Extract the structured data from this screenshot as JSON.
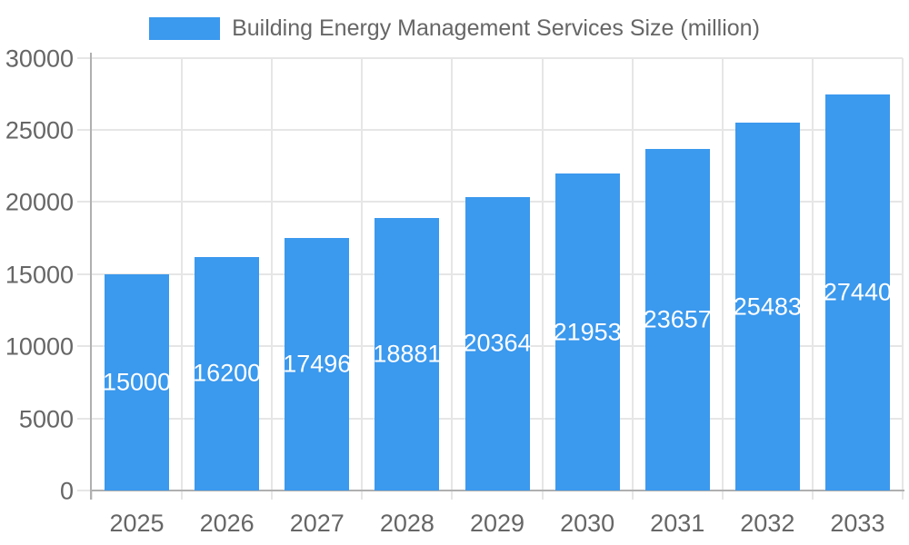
{
  "chart_data": {
    "type": "bar",
    "title": "Building Energy Management Services Size (million)",
    "categories": [
      "2025",
      "2026",
      "2027",
      "2028",
      "2029",
      "2030",
      "2031",
      "2032",
      "2033"
    ],
    "values": [
      15000,
      16200,
      17496,
      18881,
      20364,
      21953,
      23657,
      25483,
      27440
    ],
    "xlabel": "",
    "ylabel": "",
    "ylim": [
      0,
      30000
    ],
    "yticks": [
      0,
      5000,
      10000,
      15000,
      20000,
      25000,
      30000
    ],
    "grid": true,
    "legend_position": "top-center",
    "value_label_style": "white-centered-inside-bar",
    "colors": {
      "bar": "#3b99ee",
      "bar_label_text": "#ffffff",
      "axis_text": "#666666",
      "gridline": "#e6e6e6",
      "axis_line": "#b0b0b0",
      "background": "#ffffff"
    }
  }
}
